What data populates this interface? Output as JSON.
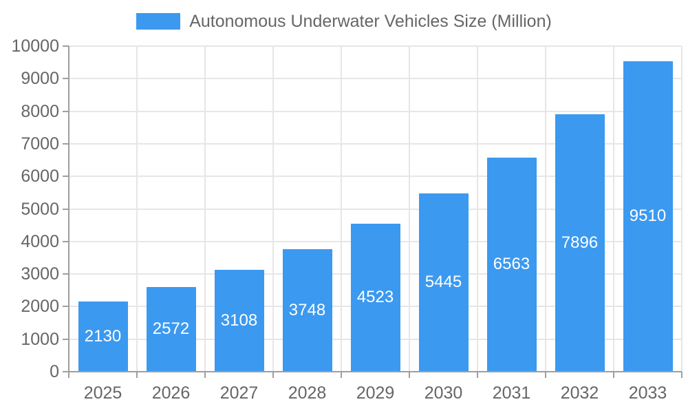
{
  "chart_data": {
    "type": "bar",
    "title": "Autonomous Underwater Vehicles Size (Million)",
    "legend": {
      "position": "top",
      "label": "Autonomous Underwater Vehicles Size (Million)"
    },
    "categories": [
      "2025",
      "2026",
      "2027",
      "2028",
      "2029",
      "2030",
      "2031",
      "2032",
      "2033"
    ],
    "values": [
      2130,
      2572,
      3108,
      3748,
      4523,
      5445,
      6563,
      7896,
      9510
    ],
    "value_labels": [
      "2130",
      "2572",
      "3108",
      "3748",
      "4523",
      "5445",
      "6563",
      "7896",
      "9510"
    ],
    "xlabel": "",
    "ylabel": "",
    "ylim": [
      0,
      10000
    ],
    "ytick_step": 1000,
    "yticks": [
      "0",
      "1000",
      "2000",
      "3000",
      "4000",
      "5000",
      "6000",
      "7000",
      "8000",
      "9000",
      "10000"
    ],
    "grid": true,
    "value_label_position": "inside-center",
    "colors": {
      "bar": "#3B99F0",
      "grid": "#E6E6E6",
      "axis": "#9E9E9E",
      "tick_text": "#666666",
      "value_text": "#FFFFFF",
      "legend_text": "#666666"
    }
  }
}
